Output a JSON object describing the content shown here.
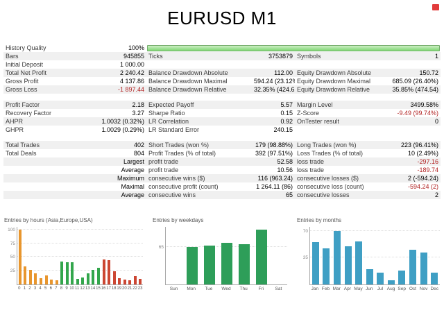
{
  "title": "EURUSD M1",
  "quality_bar_color": "#7fd773",
  "report": {
    "sections": [
      {
        "rows": [
          {
            "quality_bar": true,
            "cells": [
              {
                "l": "History Quality",
                "v": "100%"
              }
            ]
          },
          {
            "cells": [
              {
                "l": "Bars",
                "v": "945855"
              },
              {
                "l": "Ticks",
                "v": "3753879"
              },
              {
                "l": "Symbols",
                "v": "1"
              }
            ]
          },
          {
            "cells": [
              {
                "l": "Initial Deposit",
                "v": "1 000.00"
              }
            ]
          },
          {
            "cells": [
              {
                "l": "Total Net Profit",
                "v": "2 240.42"
              },
              {
                "l": "Balance Drawdown Absolute",
                "v": "112.00"
              },
              {
                "l": "Equity Drawdown Absolute",
                "v": "150.72"
              }
            ]
          },
          {
            "cells": [
              {
                "l": "Gross Profit",
                "v": "4 137.86"
              },
              {
                "l": "Balance Drawdown Maximal",
                "v": "594.24 (23.12%)"
              },
              {
                "l": "Equity Drawdown Maximal",
                "v": "685.09 (26.40%)"
              }
            ]
          },
          {
            "cells": [
              {
                "l": "Gross Loss",
                "v": "-1 897.44"
              },
              {
                "l": "Balance Drawdown Relative",
                "v": "32.35% (424.62)"
              },
              {
                "l": "Equity Drawdown Relative",
                "v": "35.85% (474.54)"
              }
            ]
          }
        ]
      },
      {
        "rows": [
          {
            "cells": [
              {
                "l": "Profit Factor",
                "v": "2.18"
              },
              {
                "l": "Expected Payoff",
                "v": "5.57"
              },
              {
                "l": "Margin Level",
                "v": "3499.58%"
              }
            ]
          },
          {
            "cells": [
              {
                "l": "Recovery Factor",
                "v": "3.27"
              },
              {
                "l": "Sharpe Ratio",
                "v": "0.15"
              },
              {
                "l": "Z-Score",
                "v": "-9.49 (99.74%)"
              }
            ]
          },
          {
            "cells": [
              {
                "l": "AHPR",
                "v": "1.0032 (0.32%)"
              },
              {
                "l": "LR Correlation",
                "v": "0.92"
              },
              {
                "l": "OnTester result",
                "v": "0"
              }
            ]
          },
          {
            "cells": [
              {
                "l": "GHPR",
                "v": "1.0029 (0.29%)"
              },
              {
                "l": "LR Standard Error",
                "v": "240.15"
              }
            ]
          }
        ]
      },
      {
        "rows": [
          {
            "cells": [
              {
                "l": "Total Trades",
                "v": "402"
              },
              {
                "l": "Short Trades (won %)",
                "v": "179 (98.88%)"
              },
              {
                "l": "Long Trades (won %)",
                "v": "223 (96.41%)"
              }
            ]
          },
          {
            "cells": [
              {
                "l": "Total Deals",
                "v": "804"
              },
              {
                "l": "Profit Trades (% of total)",
                "v": "392 (97.51%)"
              },
              {
                "l": "Loss Trades (% of total)",
                "v": "10 (2.49%)"
              }
            ]
          },
          {
            "cells": [
              {
                "l": "",
                "v": "Largest"
              },
              {
                "l": "profit trade",
                "v": "52.58"
              },
              {
                "l": "loss trade",
                "v": "-297.16"
              }
            ]
          },
          {
            "cells": [
              {
                "l": "",
                "v": "Average"
              },
              {
                "l": "profit trade",
                "v": "10.56"
              },
              {
                "l": "loss trade",
                "v": "-189.74"
              }
            ]
          },
          {
            "cells": [
              {
                "l": "",
                "v": "Maximum"
              },
              {
                "l": "consecutive wins ($)",
                "v": "116 (963.24)"
              },
              {
                "l": "consecutive losses ($)",
                "v": "2 (-594.24)"
              }
            ]
          },
          {
            "cells": [
              {
                "l": "",
                "v": "Maximal"
              },
              {
                "l": "consecutive profit (count)",
                "v": "1 264.11 (86)"
              },
              {
                "l": "consecutive loss (count)",
                "v": "-594.24 (2)"
              }
            ]
          },
          {
            "cells": [
              {
                "l": "",
                "v": "Average"
              },
              {
                "l": "consecutive wins",
                "v": "65"
              },
              {
                "l": "consecutive losses",
                "v": "2"
              }
            ]
          }
        ]
      }
    ]
  },
  "chart_data": [
    {
      "type": "bar",
      "title": "Entries by hours (Asia,Europe,USA)",
      "categories": [
        "0",
        "1",
        "2",
        "3",
        "4",
        "5",
        "6",
        "7",
        "8",
        "9",
        "10",
        "11",
        "12",
        "13",
        "14",
        "15",
        "16",
        "17",
        "18",
        "19",
        "20",
        "21",
        "22",
        "23"
      ],
      "values": [
        100,
        33,
        26,
        20,
        12,
        17,
        9,
        7,
        42,
        40,
        41,
        10,
        13,
        20,
        26,
        31,
        45,
        44,
        24,
        12,
        9,
        7,
        15,
        10
      ],
      "colors": [
        "#e8962e",
        "#e8962e",
        "#e8962e",
        "#e8962e",
        "#e8962e",
        "#e8962e",
        "#e8962e",
        "#e8962e",
        "#33a64c",
        "#33a64c",
        "#33a64c",
        "#33a64c",
        "#33a64c",
        "#33a64c",
        "#33a64c",
        "#33a64c",
        "#cc4632",
        "#cc4632",
        "#cc4632",
        "#cc4632",
        "#cc4632",
        "#cc4632",
        "#cc4632",
        "#cc4632"
      ],
      "yticks": [
        25,
        50,
        75,
        100
      ],
      "ylim": [
        0,
        105
      ],
      "xlabel": "",
      "ylabel": ""
    },
    {
      "type": "bar",
      "title": "Entries by weekdays",
      "categories": [
        "Sun",
        "Mon",
        "Tue",
        "Wed",
        "Thu",
        "Fri",
        "Sat"
      ],
      "values": [
        0,
        65,
        68,
        72,
        70,
        95,
        0
      ],
      "color": "#2e9e59",
      "yticks": [
        65
      ],
      "ylim": [
        0,
        100
      ],
      "xlabel": "",
      "ylabel": ""
    },
    {
      "type": "bar",
      "title": "Entries by months",
      "categories": [
        "Jan",
        "Feb",
        "Mar",
        "Apr",
        "May",
        "Jun",
        "Jul",
        "Aug",
        "Sep",
        "Oct",
        "Nov",
        "Dec"
      ],
      "values": [
        55,
        47,
        70,
        50,
        56,
        20,
        15,
        5,
        18,
        45,
        42,
        15
      ],
      "color": "#3f9fc4",
      "yticks": [
        35,
        70
      ],
      "ylim": [
        0,
        75
      ],
      "xlabel": "",
      "ylabel": ""
    }
  ]
}
